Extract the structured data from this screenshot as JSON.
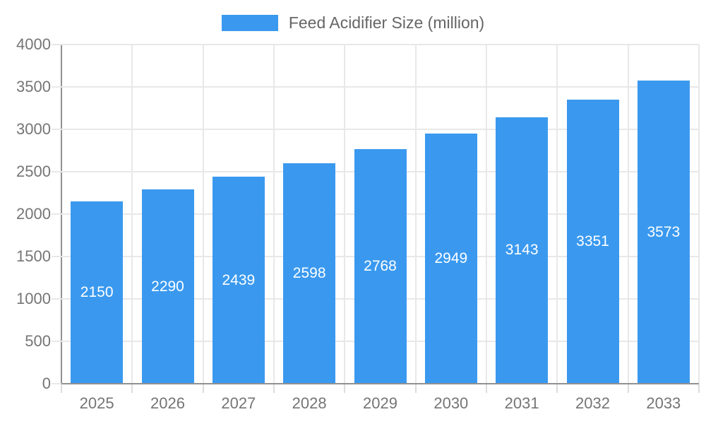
{
  "chart_data": {
    "type": "bar",
    "title": "Feed Acidifier Size (million)",
    "categories": [
      "2025",
      "2026",
      "2027",
      "2028",
      "2029",
      "2030",
      "2031",
      "2032",
      "2033"
    ],
    "series": [
      {
        "name": "Feed Acidifier Size (million)",
        "values": [
          2150,
          2290,
          2439,
          2598,
          2768,
          2949,
          3143,
          3351,
          3573
        ]
      }
    ],
    "xlabel": "",
    "ylabel": "",
    "ylim": [
      0,
      4000
    ],
    "ytick_step": 500,
    "ytick_labels": [
      "0",
      "500",
      "1000",
      "1500",
      "2000",
      "2500",
      "3000",
      "3500",
      "4000"
    ],
    "grid": true,
    "legend_position": "top-center",
    "value_label_position": "inside-center"
  },
  "colors": {
    "bar": "#3A99EF",
    "grid": "#e8e8e8",
    "axis_line": "#919191",
    "tick_text": "#757575",
    "legend_text": "#666666",
    "value_label_text": "#ffffff",
    "background": "#ffffff"
  }
}
